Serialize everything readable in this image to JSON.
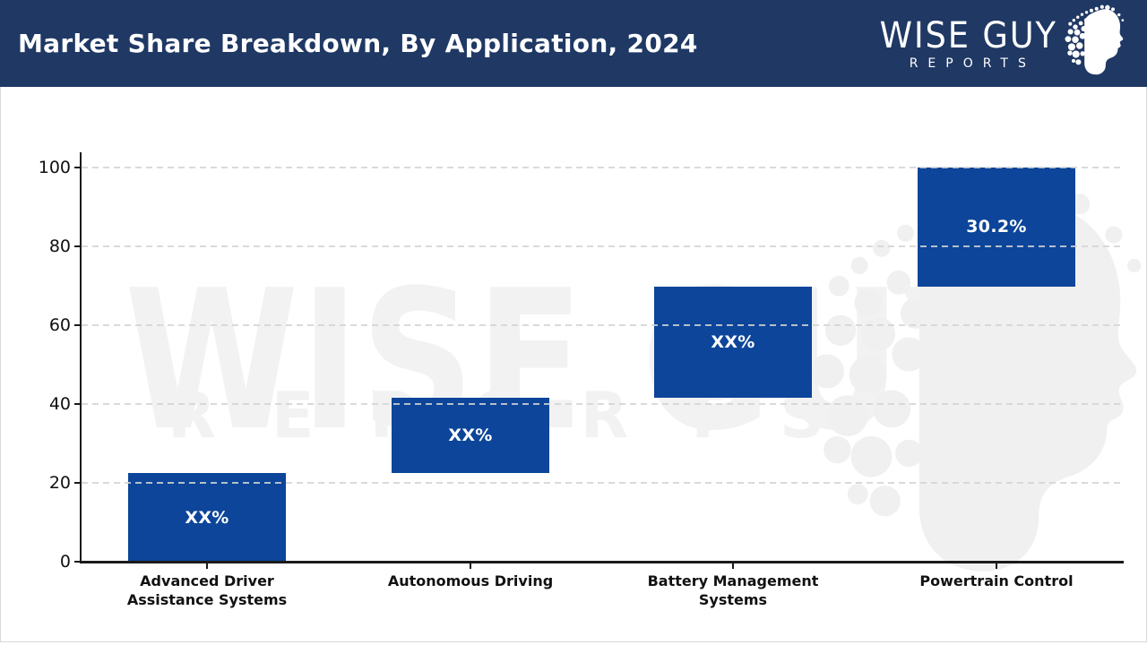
{
  "header": {
    "title": "Market Share Breakdown, By Application, 2024",
    "logo": {
      "line1": "WISE GUY",
      "line2": "REPORTS",
      "head_icon": "head-profile-dots-icon"
    },
    "bg_color": "#1f3864"
  },
  "watermark": {
    "line1": "WISE GUY",
    "line2": "REPORTS",
    "head_icon": "head-profile-dots-icon"
  },
  "chart_data": {
    "type": "bar",
    "subtype": "waterfall",
    "title": "Market Share Breakdown, By Application, 2024",
    "categories": [
      "Advanced Driver Assistance Systems",
      "Autonomous Driving",
      "Battery Management Systems",
      "Powertrain Control"
    ],
    "segments": [
      {
        "category": "Advanced Driver Assistance Systems",
        "start": 0,
        "end": 22.5,
        "label": "XX%"
      },
      {
        "category": "Autonomous Driving",
        "start": 22.5,
        "end": 41.7,
        "label": "XX%"
      },
      {
        "category": "Battery Management Systems",
        "start": 41.7,
        "end": 69.8,
        "label": "XX%"
      },
      {
        "category": "Powertrain Control",
        "start": 69.8,
        "end": 100,
        "label": "30.2%"
      }
    ],
    "ylim": [
      0,
      100
    ],
    "yticks": [
      0,
      20,
      40,
      60,
      80,
      100
    ],
    "xlabel": "",
    "ylabel": "",
    "grid": "horizontal-dashed",
    "legend": "none",
    "bar_color": "#0c4599",
    "bar_label_color": "#ffffff",
    "axis_color": "#1a1a1a",
    "gridline_color": "#d4d4d4"
  }
}
